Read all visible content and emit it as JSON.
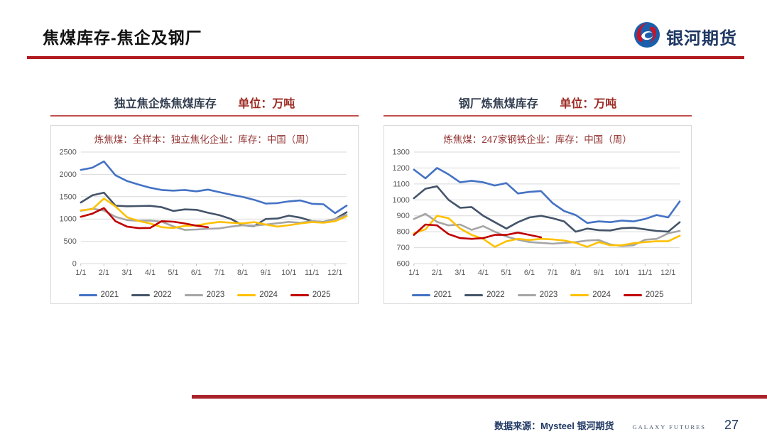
{
  "header": {
    "title": "焦煤库存-焦企及钢厂",
    "logo_text": "银河期货"
  },
  "colors": {
    "accent_red": "#B01A20",
    "navy": "#1F3864",
    "title_navy": "#333F50",
    "unit_red": "#9C2B23",
    "subtitle_maroon": "#953735",
    "grid_gray": "#D9D9D9",
    "tick_gray": "#595959"
  },
  "chart_data": [
    {
      "type": "line",
      "title": "独立焦企炼焦煤库存",
      "unit_label": "单位：万吨",
      "subtitle": "炼焦煤：全样本：独立焦化企业：库存：中国（周）",
      "x": [
        "1/1",
        "1/16",
        "2/1",
        "2/16",
        "3/1",
        "3/16",
        "4/1",
        "4/16",
        "5/1",
        "5/16",
        "6/1",
        "6/16",
        "7/1",
        "7/16",
        "8/1",
        "8/16",
        "9/1",
        "9/16",
        "10/1",
        "10/16",
        "11/1",
        "11/16",
        "12/1",
        "12/16"
      ],
      "x_tick_labels": [
        "1/1",
        "2/1",
        "3/1",
        "4/1",
        "5/1",
        "6/1",
        "7/1",
        "8/1",
        "9/1",
        "10/1",
        "11/1",
        "12/1"
      ],
      "ylim": [
        0,
        2500
      ],
      "ytick_step": 500,
      "grid": "horizontal",
      "legend_position": "bottom",
      "series": [
        {
          "name": "2021",
          "color": "#4472C4",
          "values": [
            2100,
            2150,
            2290,
            1980,
            1850,
            1770,
            1700,
            1650,
            1635,
            1650,
            1620,
            1660,
            1600,
            1545,
            1495,
            1430,
            1345,
            1355,
            1395,
            1415,
            1340,
            1330,
            1130,
            1300
          ]
        },
        {
          "name": "2022",
          "color": "#44546A",
          "values": [
            1370,
            1530,
            1590,
            1300,
            1285,
            1290,
            1295,
            1265,
            1180,
            1215,
            1205,
            1140,
            1085,
            1000,
            860,
            840,
            1000,
            1010,
            1075,
            1030,
            950,
            935,
            1000,
            1150
          ]
        },
        {
          "name": "2023",
          "color": "#A5A5A5",
          "values": [
            1185,
            1230,
            1190,
            1050,
            975,
            960,
            965,
            940,
            835,
            755,
            765,
            780,
            790,
            830,
            860,
            850,
            875,
            905,
            935,
            915,
            950,
            930,
            1000,
            1090
          ]
        },
        {
          "name": "2024",
          "color": "#FFC000",
          "values": [
            1195,
            1220,
            1460,
            1280,
            1040,
            955,
            900,
            815,
            800,
            845,
            855,
            900,
            935,
            915,
            900,
            930,
            875,
            830,
            860,
            900,
            930,
            915,
            950,
            1060
          ]
        },
        {
          "name": "2025",
          "color": "#C00000",
          "values": [
            1050,
            1120,
            1245,
            950,
            830,
            795,
            800,
            950,
            940,
            900,
            850,
            815
          ]
        }
      ]
    },
    {
      "type": "line",
      "title": "钢厂炼焦煤库存",
      "unit_label": "单位：万吨",
      "subtitle": "炼焦煤：247家钢铁企业：库存：中国（周）",
      "x": [
        "1/1",
        "1/16",
        "2/1",
        "2/16",
        "3/1",
        "3/16",
        "4/1",
        "4/16",
        "5/1",
        "5/16",
        "6/1",
        "6/16",
        "7/1",
        "7/16",
        "8/1",
        "8/16",
        "9/1",
        "9/16",
        "10/1",
        "10/16",
        "11/1",
        "11/16",
        "12/1",
        "12/16"
      ],
      "x_tick_labels": [
        "1/1",
        "2/1",
        "3/1",
        "4/1",
        "5/1",
        "6/1",
        "7/1",
        "8/1",
        "9/1",
        "10/1",
        "11/1",
        "12/1"
      ],
      "ylim": [
        600,
        1300
      ],
      "ytick_step": 100,
      "grid": "horizontal",
      "legend_position": "bottom",
      "series": [
        {
          "name": "2021",
          "color": "#4472C4",
          "values": [
            1190,
            1135,
            1200,
            1160,
            1110,
            1120,
            1110,
            1090,
            1105,
            1040,
            1050,
            1055,
            980,
            930,
            905,
            855,
            865,
            860,
            870,
            865,
            880,
            905,
            890,
            990
          ]
        },
        {
          "name": "2022",
          "color": "#44546A",
          "values": [
            1010,
            1070,
            1085,
            1000,
            950,
            955,
            900,
            860,
            820,
            860,
            890,
            900,
            885,
            865,
            800,
            820,
            810,
            808,
            822,
            825,
            815,
            805,
            800,
            860
          ]
        },
        {
          "name": "2023",
          "color": "#A5A5A5",
          "values": [
            880,
            912,
            862,
            840,
            845,
            812,
            835,
            800,
            770,
            750,
            735,
            730,
            725,
            730,
            735,
            745,
            748,
            720,
            710,
            715,
            750,
            755,
            790,
            805
          ]
        },
        {
          "name": "2024",
          "color": "#FFC000",
          "values": [
            790,
            815,
            900,
            885,
            820,
            780,
            755,
            705,
            740,
            755,
            748,
            755,
            752,
            745,
            730,
            705,
            735,
            715,
            715,
            728,
            735,
            740,
            740,
            775
          ]
        },
        {
          "name": "2025",
          "color": "#C00000",
          "values": [
            780,
            845,
            840,
            785,
            760,
            755,
            760,
            780,
            780,
            795,
            780,
            765
          ]
        }
      ]
    }
  ],
  "footer": {
    "source": "数据来源：Mysteel 银河期货",
    "brand": "GALAXY FUTURES",
    "page_number": "27"
  }
}
